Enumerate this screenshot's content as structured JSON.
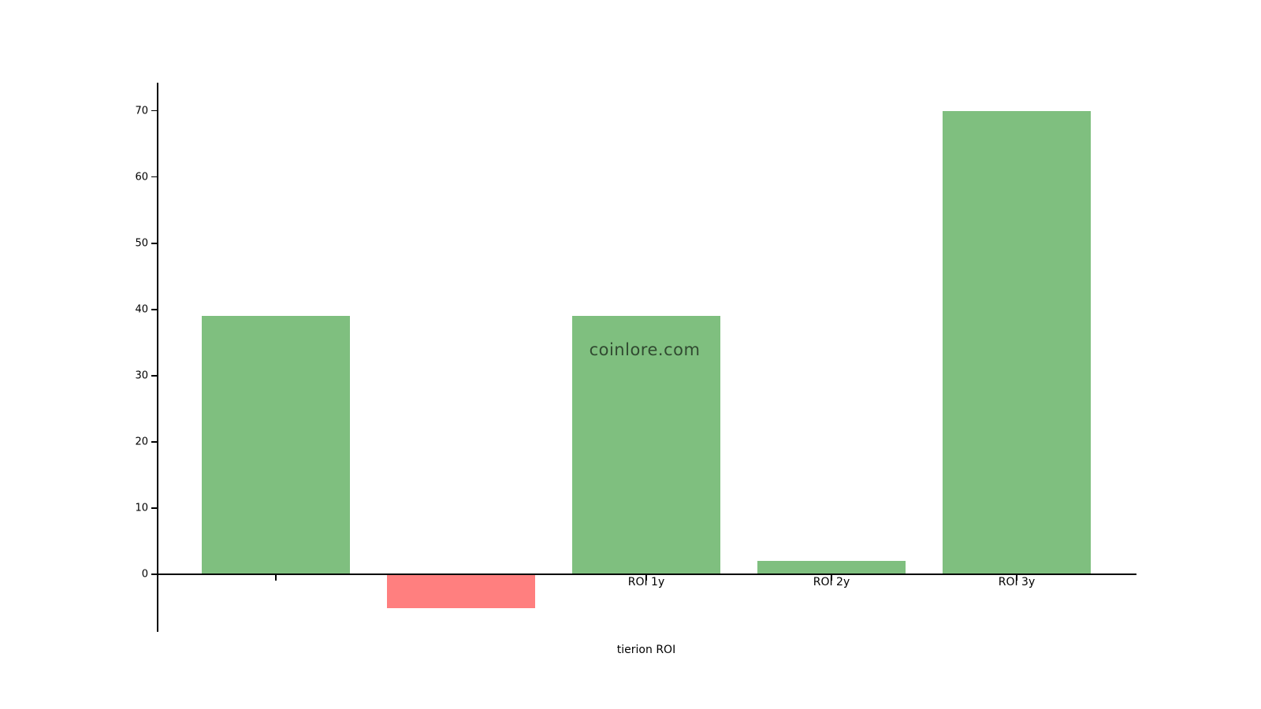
{
  "chart_data": {
    "type": "bar",
    "categories": [
      "",
      "",
      "ROI 1y",
      "ROI 2y",
      "ROI 3y"
    ],
    "values": [
      39,
      -5,
      39,
      2,
      70
    ],
    "title": "",
    "xlabel": "tierion ROI",
    "ylabel": "",
    "ylim": [
      -8.7,
      74.2
    ],
    "yticks": [
      0,
      10,
      20,
      30,
      40,
      50,
      60,
      70
    ],
    "grid": false,
    "legend": null,
    "colors": {
      "positive_bar": "#7fbf7f",
      "negative_bar": "#ff7f7f",
      "axis": "#000000",
      "tick_label": "#000000"
    }
  },
  "watermark": {
    "text": "coinlore.com"
  }
}
